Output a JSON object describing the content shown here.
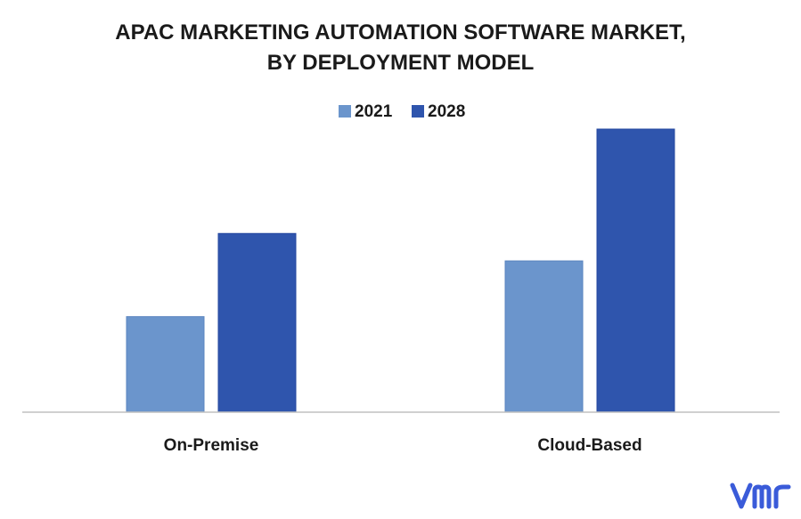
{
  "title_line1": "APAC MARKETING AUTOMATION SOFTWARE MARKET,",
  "title_line2": "BY DEPLOYMENT MODEL",
  "colors": {
    "series_2021": "#6b95cc",
    "series_2028": "#2f55ad",
    "axis": "#c0c0c0",
    "logo": "#3a5bd9"
  },
  "logo_text": "vmr",
  "chart_data": {
    "type": "bar",
    "categories": [
      "On-Premise",
      "Cloud-Based"
    ],
    "series": [
      {
        "name": "2021",
        "values": [
          10.8,
          17.1
        ]
      },
      {
        "name": "2028",
        "values": [
          20.2,
          32.0
        ]
      }
    ],
    "ylim": [
      0,
      32
    ],
    "legend": "top-center",
    "grid": false,
    "xlabel": "",
    "ylabel": ""
  }
}
